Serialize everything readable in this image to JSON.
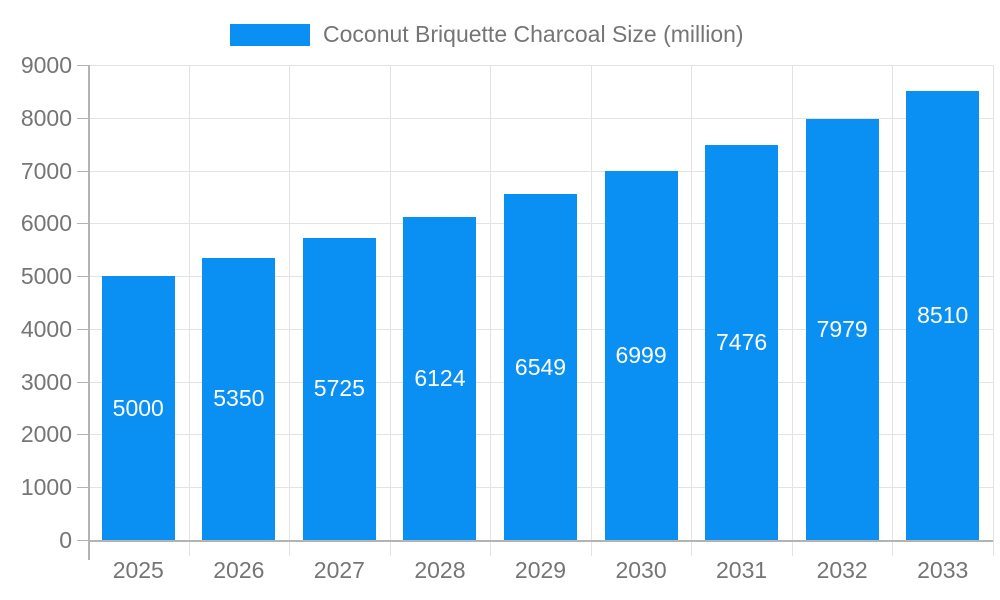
{
  "chart_data": {
    "type": "bar",
    "title": "Coconut Briquette Charcoal Size (million)",
    "categories": [
      "2025",
      "2026",
      "2027",
      "2028",
      "2029",
      "2030",
      "2031",
      "2032",
      "2033"
    ],
    "values": [
      5000,
      5350,
      5725,
      6124,
      6549,
      6999,
      7476,
      7979,
      8510
    ],
    "xlabel": "",
    "ylabel": "",
    "ylim": [
      0,
      9000
    ],
    "yticks": [
      0,
      1000,
      2000,
      3000,
      4000,
      5000,
      6000,
      7000,
      8000,
      9000
    ],
    "grid": true,
    "legend_position": "top",
    "colors": {
      "bar": "#0a8ff2",
      "bar_value_label": "#ffffff",
      "axis_text": "#757575",
      "grid_line": "#e3e3e3",
      "axis_line": "#b3b3b3",
      "background": "#ffffff"
    }
  }
}
